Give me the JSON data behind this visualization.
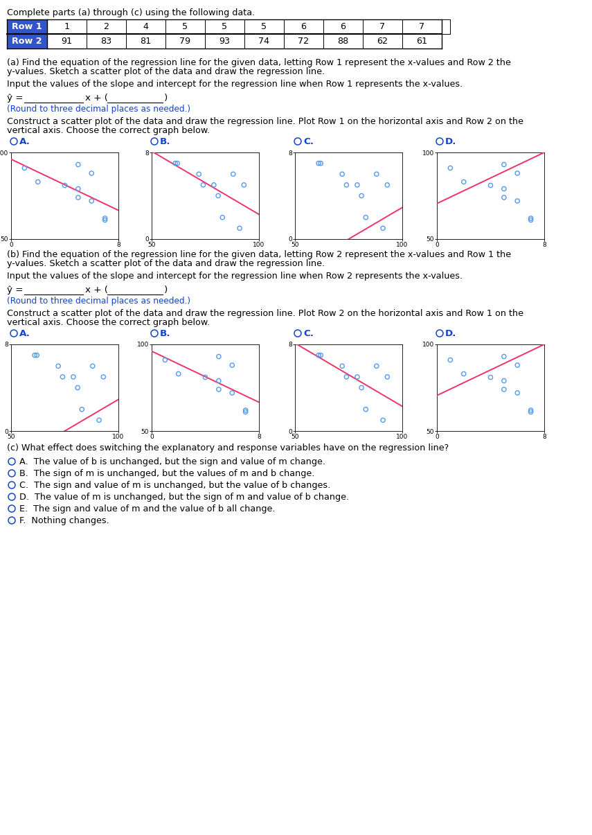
{
  "title": "Complete parts (a) through (c) using the following data.",
  "row1": [
    1,
    2,
    4,
    5,
    5,
    5,
    6,
    6,
    7,
    7
  ],
  "row2": [
    91,
    83,
    81,
    79,
    93,
    74,
    72,
    88,
    62,
    61
  ],
  "header_bg": "#3355cc",
  "header_text": "#ffffff",
  "dot_color": "#5599ee",
  "line_color": "#ee3366",
  "blue_text": "#1144cc",
  "part_a_text1": "(a) Find the equation of the regression line for the given data, letting Row 1 represent the x-values and Row 2 the",
  "part_a_text2": "y-values. Sketch a scatter plot of the data and draw the regression line.",
  "part_a_input": "Input the values of the slope and intercept for the regression line when Row 1 represents the x-values.",
  "part_b_text1": "(b) Find the equation of the regression line for the given data, letting Row 2 represent the x-values and Row 1 the",
  "part_b_text2": "y-values. Sketch a scatter plot of the data and draw the regression line.",
  "part_b_input": "Input the values of the slope and intercept for the regression line when Row 2 represents the x-values.",
  "construct_a": "Construct a scatter plot of the data and draw the regression line. Plot Row 1 on the horizontal axis and Row 2 on the",
  "construct_a2": "vertical axis. Choose the correct graph below.",
  "construct_b": "Construct a scatter plot of the data and draw the regression line. Plot Row 2 on the horizontal axis and Row 1 on the",
  "construct_b2": "vertical axis. Choose the correct graph below.",
  "part_c_q": "(c) What effect does switching the explanatory and response variables have on the regression line?",
  "options_c": [
    "A.  The value of b is unchanged, but the sign and value of m change.",
    "B.  The sign of m is unchanged, but the values of m and b change.",
    "C.  The sign and value of m is unchanged, but the value of b changes.",
    "D.  The value of m is unchanged, but the sign of m and value of b change.",
    "E.  The sign and value of m and the value of b all change.",
    "F.  Nothing changes."
  ]
}
